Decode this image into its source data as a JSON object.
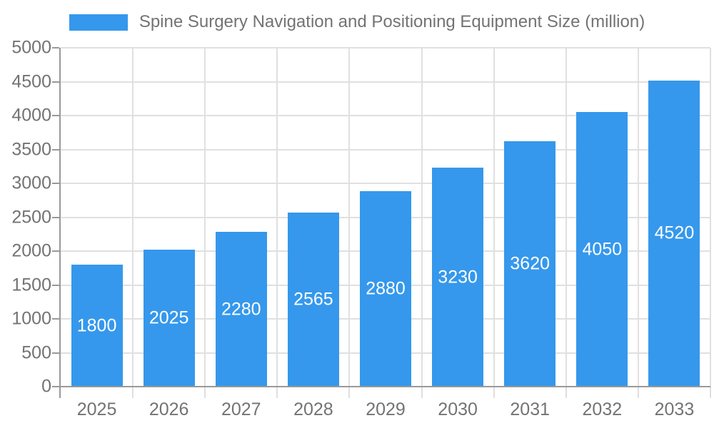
{
  "legend": {
    "label": "Spine Surgery Navigation and Positioning Equipment Size (million)",
    "swatch_color": "#3598EC"
  },
  "chart_data": {
    "type": "bar",
    "title": "Spine Surgery Navigation and Positioning Equipment Size (million)",
    "series_name": "Spine Surgery Navigation and Positioning Equipment Size (million)",
    "categories": [
      "2025",
      "2026",
      "2027",
      "2028",
      "2029",
      "2030",
      "2031",
      "2032",
      "2033"
    ],
    "values": [
      1800,
      2025,
      2280,
      2565,
      2880,
      3230,
      3620,
      4050,
      4520
    ],
    "bar_labels": [
      "1800",
      "2025",
      "2280",
      "2565",
      "2880",
      "3230",
      "3620",
      "4050",
      "4520"
    ],
    "xlabel": "",
    "ylabel": "",
    "ylim": [
      0,
      5000
    ],
    "ytick_interval": 500,
    "ytick_labels": [
      "0",
      "500",
      "1000",
      "1500",
      "2000",
      "2500",
      "3000",
      "3500",
      "4000",
      "4500",
      "5000"
    ],
    "grid": true,
    "legend_position": "top-center",
    "bar_color": "#3598EC",
    "bar_label_color": "#FFFFFF",
    "axis_text_color": "#737373",
    "axis_line_color": "#999999",
    "grid_color": "#E0E0E0",
    "background_color": "#FFFFFF"
  }
}
